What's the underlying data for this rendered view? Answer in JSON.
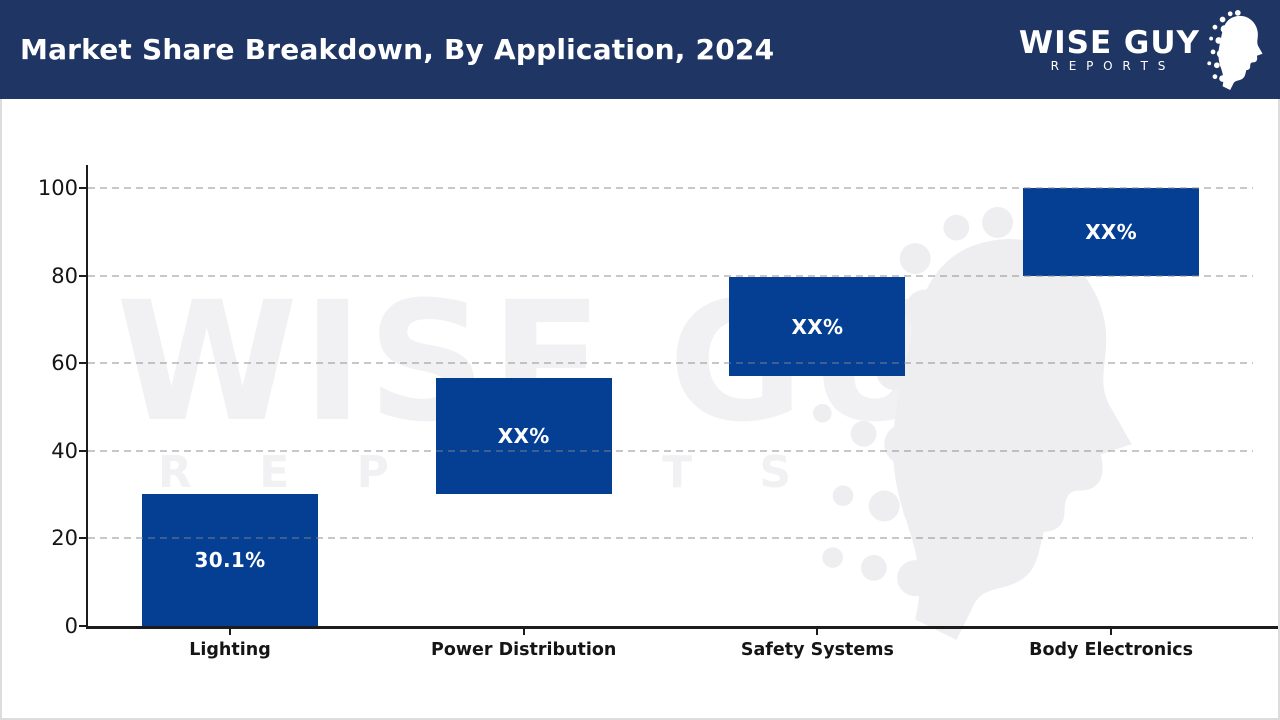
{
  "header": {
    "title": "Market Share Breakdown, By Application, 2024",
    "logo": {
      "line1": "WISE GUY",
      "line2": "R E P O R T S"
    }
  },
  "watermark": {
    "line1": "WISE GUY",
    "line2": "R E P O R T S"
  },
  "colors": {
    "header_bg": "#1f3563",
    "bar_blue": "#043f94",
    "grid_gray": "#d9d9d9",
    "axis_black": "#1c1c1c",
    "watermark_gray": "#f1f1f3",
    "bar_label_white": "#ffffff"
  },
  "chart_data": {
    "type": "bar",
    "subtype": "waterfall",
    "title": "Market Share Breakdown, By Application, 2024",
    "xlabel": "",
    "ylabel": "",
    "ylim": [
      0,
      107
    ],
    "grid": "horizontal dashed",
    "legend": "none",
    "bar_color": "#043f94",
    "label_color": "#ffffff",
    "categories": [
      "Lighting",
      "Power Distribution",
      "Safety Systems",
      "Body Electronics"
    ],
    "yticks": [
      0,
      20,
      40,
      60,
      80,
      100
    ],
    "segments": [
      {
        "category": "Lighting",
        "start": 0,
        "end": 30.1,
        "label": "30.1%"
      },
      {
        "category": "Power Distribution",
        "start": 30.1,
        "end": 56.7,
        "label": "XX%"
      },
      {
        "category": "Safety Systems",
        "start": 57.0,
        "end": 79.7,
        "label": "XX%"
      },
      {
        "category": "Body Electronics",
        "start": 80.0,
        "end": 100,
        "label": "XX%"
      }
    ]
  }
}
